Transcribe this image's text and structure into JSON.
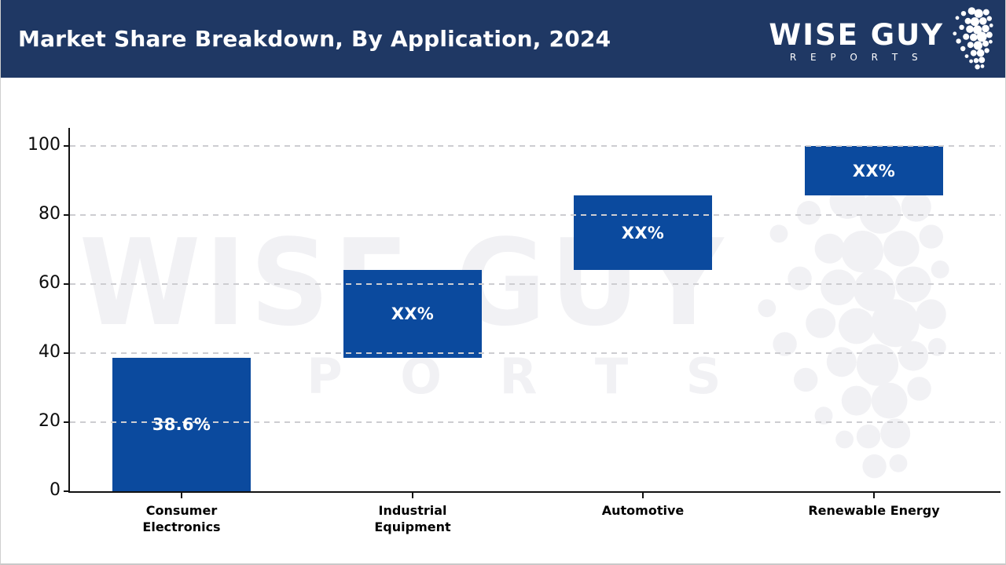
{
  "header": {
    "title": "Market Share Breakdown, By Application, 2024",
    "logo_line1": "WISE GUY",
    "logo_line2": "R E P O R T S"
  },
  "watermark": {
    "line1": "WISE GUY",
    "line2": "R E P O R T S"
  },
  "chart_data": {
    "type": "bar",
    "subtype": "waterfall_breakdown",
    "title": "Market Share Breakdown, By Application, 2024",
    "categories": [
      "Consumer\nElectronics",
      "Industrial\nEquipment",
      "Automotive",
      "Renewable Energy"
    ],
    "series": [
      {
        "name": "Market share (%)",
        "segments": [
          {
            "category": "Consumer Electronics",
            "start": 0,
            "end": 38.6,
            "value_label": "38.6%"
          },
          {
            "category": "Industrial Equipment",
            "start": 38.6,
            "end": 64.1,
            "value_label": "XX%"
          },
          {
            "category": "Automotive",
            "start": 64.1,
            "end": 85.6,
            "value_label": "XX%"
          },
          {
            "category": "Renewable Energy",
            "start": 85.6,
            "end": 100,
            "value_label": "XX%"
          }
        ]
      }
    ],
    "y_ticks": [
      0,
      20,
      40,
      60,
      80,
      100
    ],
    "ylim": [
      0,
      105
    ],
    "grid": "horizontal-dashed",
    "legend": "none",
    "bar_color": "#0b4a9e",
    "bar_label_color": "#ffffff"
  },
  "colors": {
    "header_bg": "#1f3864",
    "bar": "#0b4a9e",
    "grid": "#cdcdd1",
    "axis": "#111111",
    "watermark": "#f1f1f4",
    "page_border": "#cfcfcf"
  }
}
